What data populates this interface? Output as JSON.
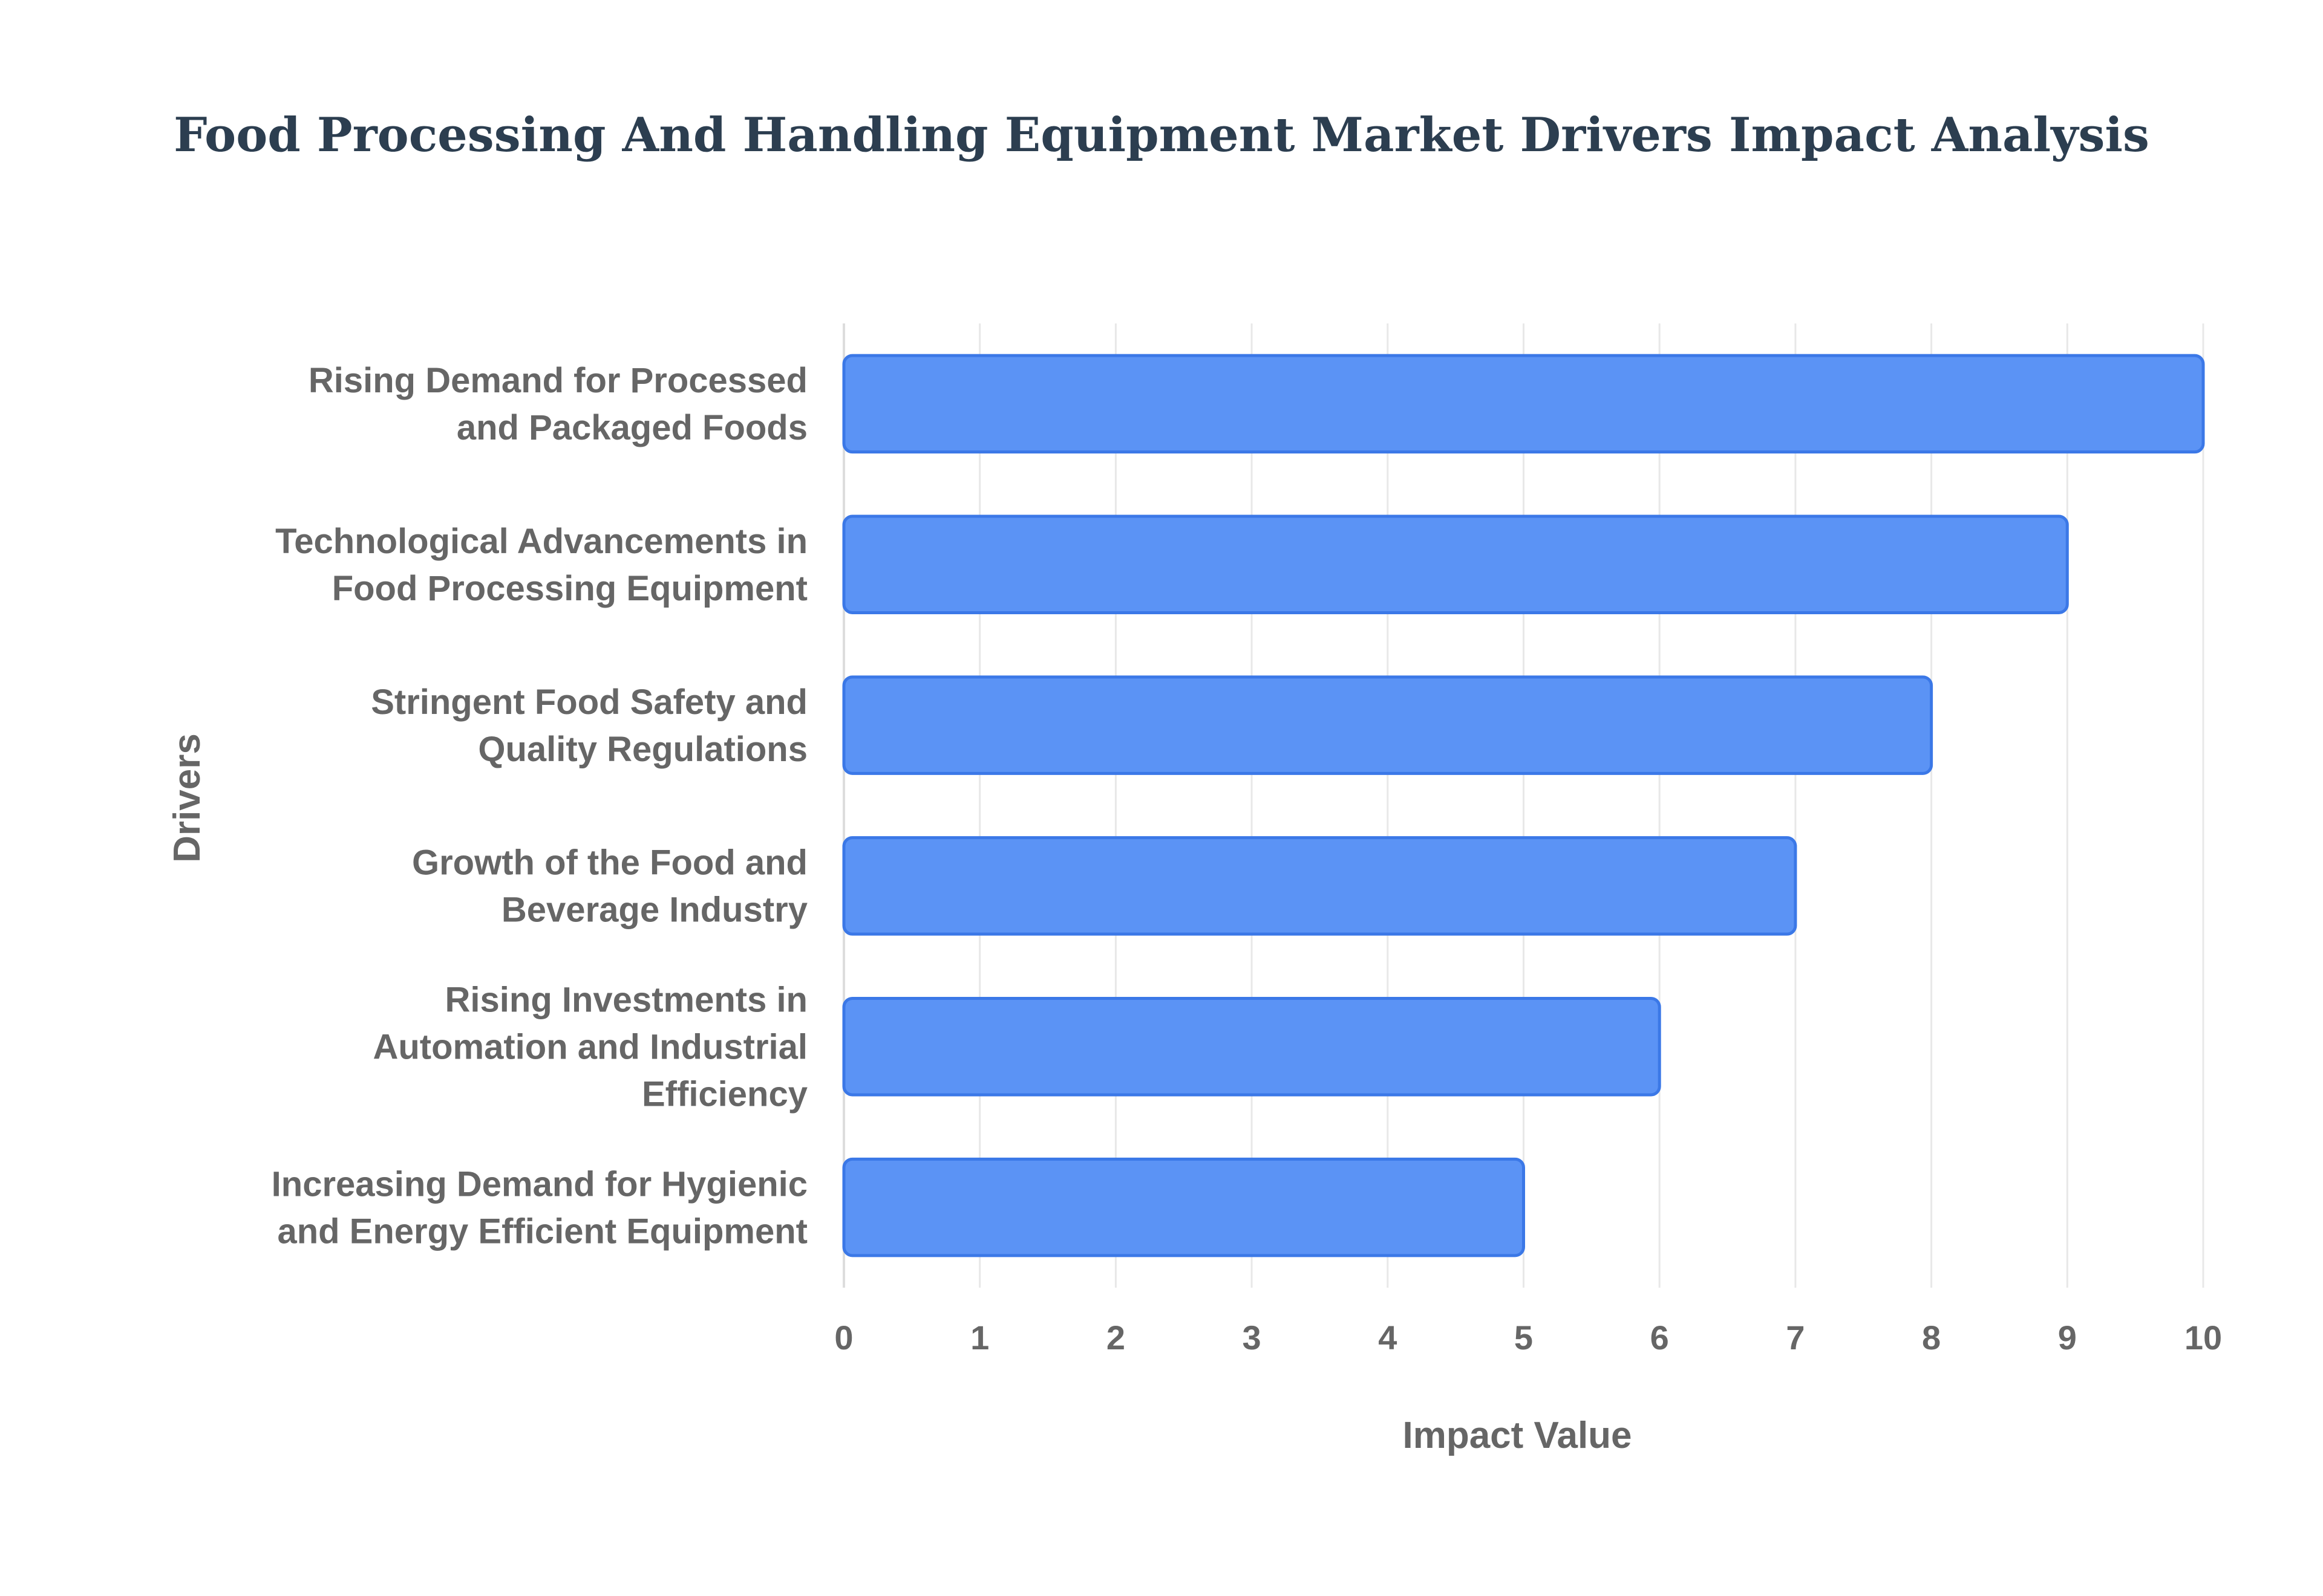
{
  "chart_data": {
    "type": "bar",
    "orientation": "horizontal",
    "title": "Food Processing And Handling Equipment Market Drivers Impact Analysis",
    "xlabel": "Impact Value",
    "ylabel": "Drivers",
    "categories": [
      [
        "Rising Demand for Processed",
        "and Packaged Foods"
      ],
      [
        "Technological Advancements in",
        "Food Processing Equipment"
      ],
      [
        "Stringent Food Safety and",
        "Quality Regulations"
      ],
      [
        "Growth of the Food and",
        "Beverage Industry"
      ],
      [
        "Rising Investments in",
        "Automation and Industrial",
        "Efficiency"
      ],
      [
        "Increasing Demand for Hygienic",
        "and Energy Efficient Equipment"
      ]
    ],
    "values": [
      10,
      9,
      8,
      7,
      6,
      5
    ],
    "xlim": [
      0,
      10
    ],
    "xticks": [
      "0",
      "1",
      "2",
      "3",
      "4",
      "5",
      "6",
      "7",
      "8",
      "9",
      "10"
    ],
    "grid": true,
    "legend": "none",
    "colors": {
      "bar_fill": "#5b93f5",
      "bar_stroke": "#3b78e7",
      "grid": "#e8e8e8",
      "axis": "#dddddd",
      "title": "#2c3e50",
      "text": "#666666"
    }
  }
}
